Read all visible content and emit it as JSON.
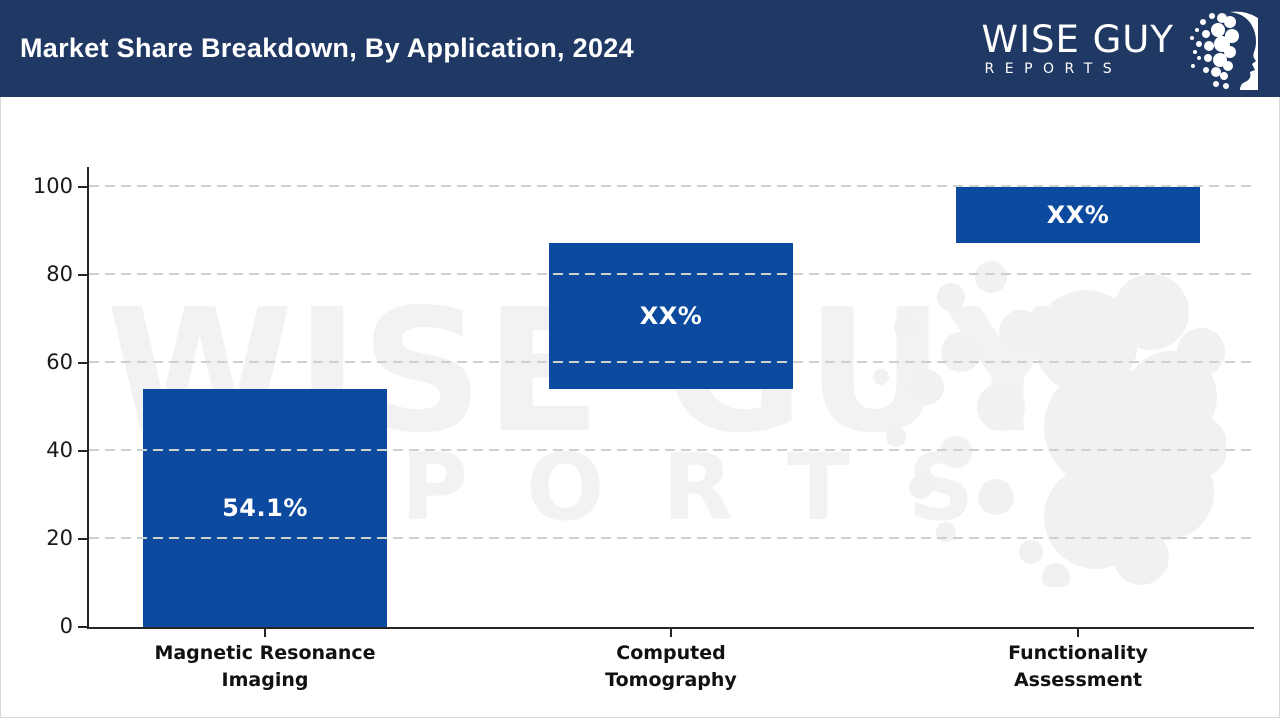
{
  "header": {
    "title": "Market Share Breakdown, By Application, 2024",
    "logo_line1": "WISE GUY",
    "logo_line2": "REPORTS",
    "bg_color": "#1f3864"
  },
  "watermark": {
    "line1": "WISE GUY",
    "line2": "REPORTS"
  },
  "chart_data": {
    "type": "bar",
    "subtype": "waterfall-stacked-percentage",
    "title": "Market Share Breakdown, By Application, 2024",
    "categories": [
      "Magnetic Resonance Imaging",
      "Computed Tomography",
      "Functionality Assessment"
    ],
    "categories_wrapped": [
      [
        "Magnetic Resonance",
        "Imaging"
      ],
      [
        "Computed",
        "Tomography"
      ],
      [
        "Functionality",
        "Assessment"
      ]
    ],
    "segments": [
      {
        "category": "Magnetic Resonance Imaging",
        "start": 0,
        "end": 54.1,
        "estimated_value": 54.1,
        "label": "54.1%"
      },
      {
        "category": "Computed Tomography",
        "start": 54.1,
        "end": 87.2,
        "estimated_value": 33.1,
        "label": "XX%"
      },
      {
        "category": "Functionality Assessment",
        "start": 87.2,
        "end": 100,
        "estimated_value": 12.8,
        "label": "XX%"
      }
    ],
    "xlabel": "",
    "ylabel": "",
    "ylim": [
      0,
      100
    ],
    "yticks": [
      0,
      20,
      40,
      60,
      80,
      100
    ],
    "grid": "horizontal-dashed",
    "legend": null,
    "colors": {
      "bar": "#0b4a9e",
      "bar_label": "#ffffff",
      "axis": "#262626",
      "gridline": "#cfcfcf",
      "watermark": "#f2f2f2",
      "card_border": "#d9d9d9"
    }
  }
}
